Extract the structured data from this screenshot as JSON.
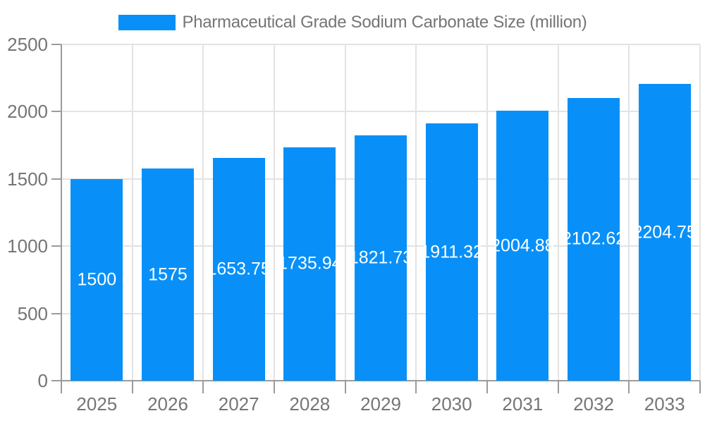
{
  "legend": {
    "label": "Pharmaceutical Grade Sodium Carbonate Size (million)"
  },
  "chart_data": {
    "type": "bar",
    "title": "Pharmaceutical Grade Sodium Carbonate Size (million)",
    "categories": [
      "2025",
      "2026",
      "2027",
      "2028",
      "2029",
      "2030",
      "2031",
      "2032",
      "2033"
    ],
    "values": [
      1500,
      1575,
      1653.75,
      1735.94,
      1821.73,
      1911.32,
      2004.88,
      2102.62,
      2204.75
    ],
    "bar_labels": [
      "1500",
      "1575",
      "1653.75",
      "1735.94",
      "1821.73",
      "1911.32",
      "2004.88",
      "2102.62",
      "2204.75"
    ],
    "xlabel": "",
    "ylabel": "",
    "ylim": [
      0,
      2500
    ],
    "yticks": [
      0,
      500,
      1000,
      1500,
      2000,
      2500
    ],
    "grid": true,
    "legend_position": "top",
    "colors": {
      "bar": "#0890f8",
      "bar_label": "#ffffff",
      "axis_text": "#757575",
      "grid_line": "#e3e3e3",
      "axis_line": "#9b9b9b"
    }
  }
}
